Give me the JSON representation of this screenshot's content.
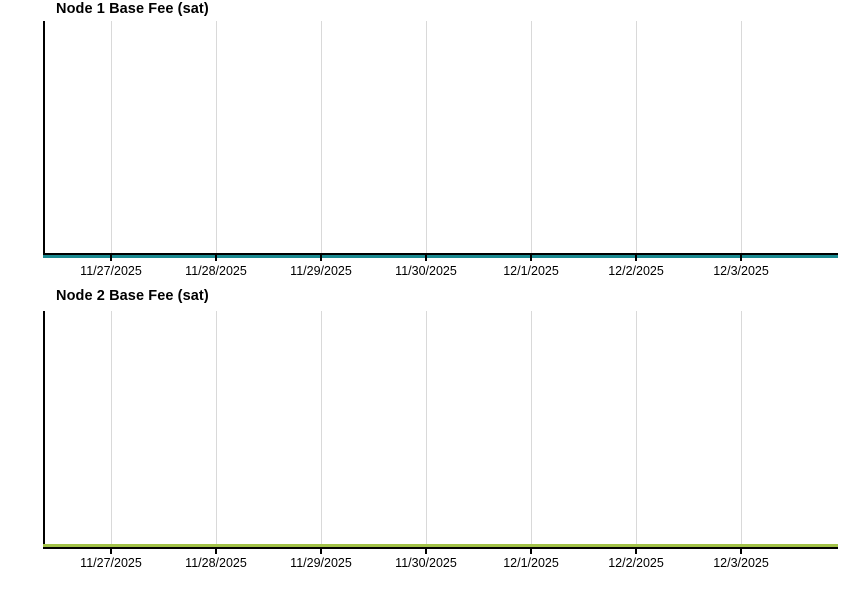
{
  "page": {
    "background": "#ffffff"
  },
  "chart_data": [
    {
      "type": "line",
      "title": "Node 1 Base Fee (sat)",
      "x": [
        "11/27/2025",
        "11/28/2025",
        "11/29/2025",
        "11/30/2025",
        "12/1/2025",
        "12/2/2025",
        "12/3/2025"
      ],
      "series": [
        {
          "name": "Node 1 Base Fee (sat)",
          "values": [
            0,
            0,
            0,
            0,
            0,
            0,
            0
          ],
          "color": "#1b8a91"
        }
      ],
      "xlabel": "",
      "ylabel": "",
      "grid": "vertical-only",
      "gridline_color": "#d9d9d9",
      "axis_color": "#000000",
      "legend": "none"
    },
    {
      "type": "line",
      "title": "Node 2 Base Fee (sat)",
      "x": [
        "11/27/2025",
        "11/28/2025",
        "11/29/2025",
        "11/30/2025",
        "12/1/2025",
        "12/2/2025",
        "12/3/2025"
      ],
      "series": [
        {
          "name": "Node 2 Base Fee (sat)",
          "values": [
            0,
            0,
            0,
            0,
            0,
            0,
            0
          ],
          "color": "#a2c248"
        }
      ],
      "xlabel": "",
      "ylabel": "",
      "grid": "vertical-only",
      "gridline_color": "#d9d9d9",
      "axis_color": "#000000",
      "legend": "none"
    }
  ]
}
